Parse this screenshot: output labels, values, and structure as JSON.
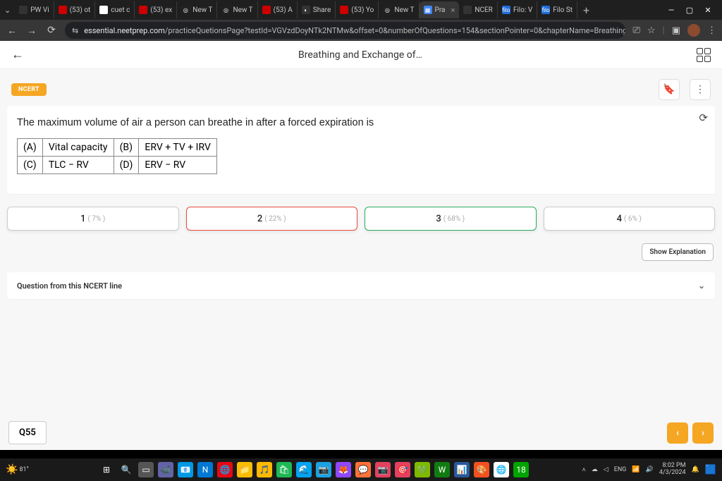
{
  "browser": {
    "tabs": [
      {
        "label": "PW Vi",
        "icon_bg": "#333"
      },
      {
        "label": "(53) ot",
        "icon_bg": "#cc0000"
      },
      {
        "label": "cuet c",
        "icon_bg": "#fff",
        "icon_txt": "G"
      },
      {
        "label": "(53) ex",
        "icon_bg": "#cc0000"
      },
      {
        "label": "New T",
        "icon_bg": "#222",
        "icon_txt": "◎"
      },
      {
        "label": "New T",
        "icon_bg": "#222",
        "icon_txt": "◎"
      },
      {
        "label": "(53) A",
        "icon_bg": "#cc0000"
      },
      {
        "label": "Share",
        "icon_bg": "#333",
        "icon_txt": "◐"
      },
      {
        "label": "(53) Yo",
        "icon_bg": "#cc0000"
      },
      {
        "label": "New T",
        "icon_bg": "#222",
        "icon_txt": "◎"
      },
      {
        "label": "Pra",
        "icon_bg": "#4285f4",
        "icon_txt": "▦",
        "active": true
      },
      {
        "label": "NCER",
        "icon_bg": "#333"
      },
      {
        "label": "Filo: V",
        "icon_bg": "#1e6bd6",
        "icon_txt": "filo"
      },
      {
        "label": "Filo St",
        "icon_bg": "#1e6bd6",
        "icon_txt": "filo"
      }
    ],
    "url_domain": "essential.neetprep.com",
    "url_path": "/practiceQuetionsPage?testId=VGVzdDoyNTk2NTMw&offset=0&numberOfQuestions=154&sectionPointer=0&chapterName=Breathing+and+Exchang..."
  },
  "page": {
    "title": "Breathing and Exchange of…",
    "badge": "NCERT",
    "question_text": "The maximum volume of air a person can breathe in after a forced expiration is",
    "options": {
      "a_label": "(A)",
      "a_text": "Vital capacity",
      "b_label": "(B)",
      "b_text": "ERV + TV + IRV",
      "c_label": "(C)",
      "c_text": "TLC − RV",
      "d_label": "(D)",
      "d_text": "ERV − RV"
    },
    "answers": [
      {
        "num": "1",
        "pct": "( 7% )",
        "cls": ""
      },
      {
        "num": "2",
        "pct": "( 22% )",
        "cls": "red"
      },
      {
        "num": "3",
        "pct": "( 68% )",
        "cls": "green"
      },
      {
        "num": "4",
        "pct": "( 6% )",
        "cls": ""
      }
    ],
    "explain_label": "Show Explanation",
    "ncert_line": "Question from this NCERT line",
    "qnum": "Q55"
  },
  "taskbar": {
    "weather": "81°",
    "time": "8:02 PM",
    "date": "4/3/2024",
    "icon_colors": [
      "#0078d4",
      "#444",
      "#555",
      "#6264a7",
      "#0099e5",
      "#0078d4",
      "#e50914",
      "#fbbc04",
      "#ffb900",
      "#1db954",
      "#00a4ef",
      "#1ba1e2",
      "#9146ff",
      "#ff7139",
      "#e4405f",
      "#e4405f",
      "#7fba00",
      "#107c10",
      "#2b579a",
      "#f25022",
      "#fff",
      "#00a300"
    ]
  }
}
